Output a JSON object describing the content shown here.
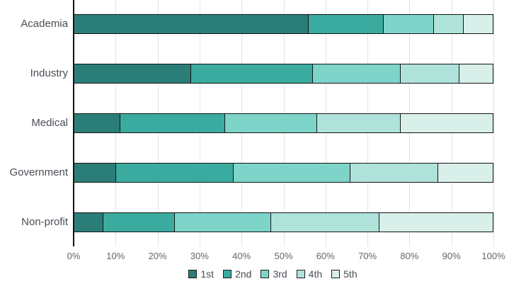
{
  "chart_data": {
    "type": "bar",
    "stacked": true,
    "orientation": "horizontal",
    "title": "",
    "categories": [
      "Academia",
      "Industry",
      "Medical",
      "Government",
      "Non-profit"
    ],
    "series": [
      {
        "name": "1st",
        "color": "#2b7e78",
        "values": [
          56,
          28,
          11,
          10,
          7
        ]
      },
      {
        "name": "2nd",
        "color": "#3aab9e",
        "values": [
          18,
          29,
          25,
          28,
          17
        ]
      },
      {
        "name": "3rd",
        "color": "#7ed4c9",
        "values": [
          12,
          21,
          22,
          28,
          23
        ]
      },
      {
        "name": "4th",
        "color": "#afe3da",
        "values": [
          7,
          14,
          20,
          21,
          26
        ]
      },
      {
        "name": "5th",
        "color": "#d9efe9",
        "values": [
          7,
          8,
          22,
          13,
          27
        ]
      }
    ],
    "x_ticks": [
      "0%",
      "10%",
      "20%",
      "30%",
      "40%",
      "50%",
      "60%",
      "70%",
      "80%",
      "90%",
      "100%"
    ],
    "xlim": [
      0,
      100
    ],
    "xlabel": "",
    "ylabel": "",
    "grid": true,
    "legend_position": "bottom",
    "legend_labels": [
      "1st",
      "2nd",
      "3rd",
      "4th",
      "5th"
    ]
  },
  "style": {
    "grid_color": "#e3e3e3",
    "axis_color": "#121212",
    "segment_border_color": "#141414",
    "category_label_color": "#4c4c58",
    "tick_label_color": "#64646f",
    "legend_label_color": "#4c4c58",
    "swatch_border_color": "#1d1d1d",
    "background_color": "#ffffff"
  }
}
